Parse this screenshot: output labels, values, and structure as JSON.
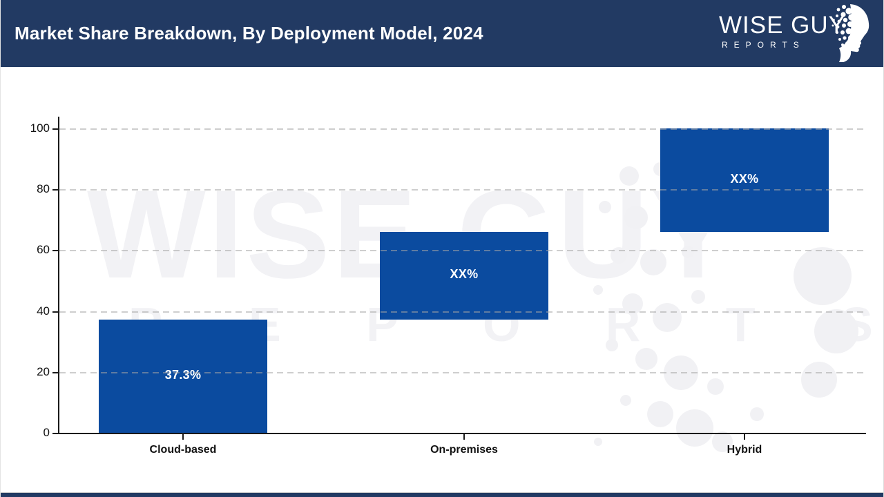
{
  "header": {
    "title": "Market Share Breakdown, By Deployment Model, 2024",
    "bg_color": "#223a63",
    "logo": {
      "line1": "WISE GUY",
      "line2": "REPORTS"
    }
  },
  "watermark": {
    "line1": "WISE GUY",
    "line2": "R E P O R T S"
  },
  "chart_data": {
    "type": "bar",
    "subtype": "floating-waterfall",
    "title": "Market Share Breakdown, By Deployment Model, 2024",
    "categories": [
      "Cloud-based",
      "On-premises",
      "Hybrid"
    ],
    "segments": [
      {
        "category": "Cloud-based",
        "start": 0,
        "end": 37.3,
        "label": "37.3%"
      },
      {
        "category": "On-premises",
        "start": 37.3,
        "end": 66,
        "label": "XX%"
      },
      {
        "category": "Hybrid",
        "start": 66,
        "end": 100,
        "label": "XX%"
      }
    ],
    "yticks": [
      0,
      20,
      40,
      60,
      80,
      100
    ],
    "ylim": [
      0,
      105
    ],
    "xlabel": "",
    "ylabel": "",
    "grid": "horizontal-dashed",
    "legend": "none",
    "bar_color": "#0b4b9f",
    "bar_label_color": "#ffffff",
    "axis_color": "#1a1a1a",
    "tick_label_color": "#111111"
  }
}
